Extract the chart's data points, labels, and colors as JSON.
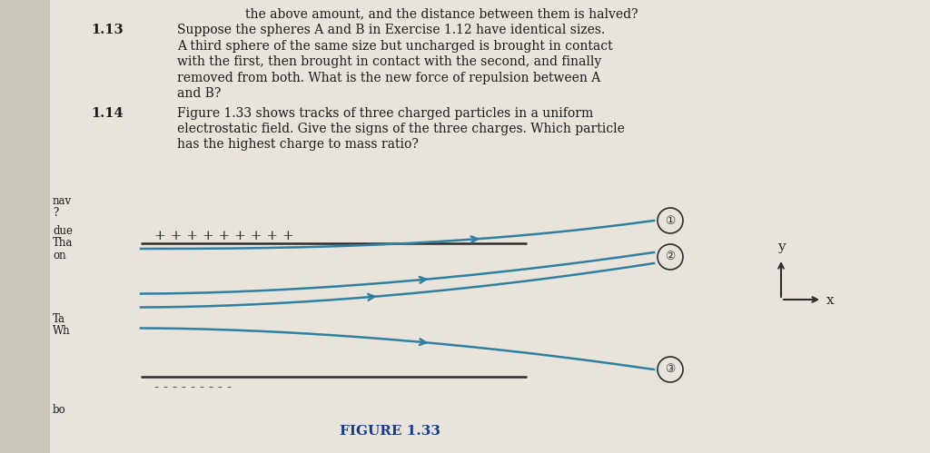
{
  "background_color": "#cdc8be",
  "page_color": "#e8e4dc",
  "text_color": "#1a1a1a",
  "teal_color": "#3080a0",
  "dark_color": "#2d2d2d",
  "figure_caption": "FIGURE 1.33",
  "caption_color": "#1a3a8a",
  "problem_113_label": "1.13",
  "problem_113_lines": [
    "Suppose the spheres A and B in Exercise 1.12 have identical sizes.",
    "A third sphere of the same size but uncharged is brought in contact",
    "with the first, then brought in contact with the second, and finally",
    "removed from both. What is the new force of repulsion between A",
    "and B?"
  ],
  "problem_114_label": "1.14",
  "problem_114_lines": [
    "Figure 1.33 shows tracks of three charged particles in a uniform",
    "electrostatic field. Give the signs of the three charges. Which particle",
    "has the highest charge to mass ratio?"
  ],
  "top_line_partial": "the above amount, and the distance between them is halved?",
  "left_margin_texts": [
    [
      "nav",
      215
    ],
    [
      "?",
      228
    ],
    [
      "due",
      248
    ],
    [
      "Tha",
      261
    ],
    [
      "on",
      275
    ],
    [
      "Ta",
      345
    ],
    [
      "Wh",
      358
    ],
    [
      "bo",
      445
    ]
  ]
}
